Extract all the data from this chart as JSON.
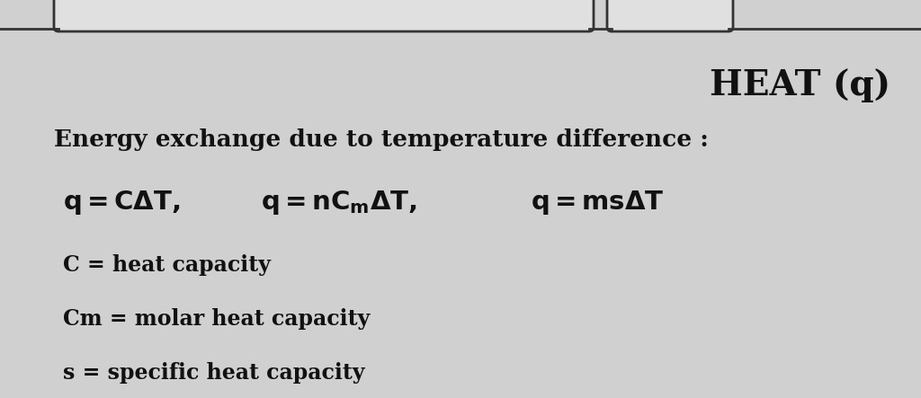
{
  "title": "HEAT (q)",
  "subtitle": "Energy exchange due to temperature difference :",
  "def1": "C = heat capacity",
  "def2": "Cm = molar heat capacity",
  "def3": "s = specific heat capacity",
  "bg_color": "#d0d0d0",
  "page_color": "#dcdcdc",
  "text_color": "#111111",
  "tab_color": "#e0e0e0",
  "tab_line_color": "#333333",
  "title_fontsize": 28,
  "subtitle_fontsize": 19,
  "formula_fontsize": 21,
  "def_fontsize": 17
}
